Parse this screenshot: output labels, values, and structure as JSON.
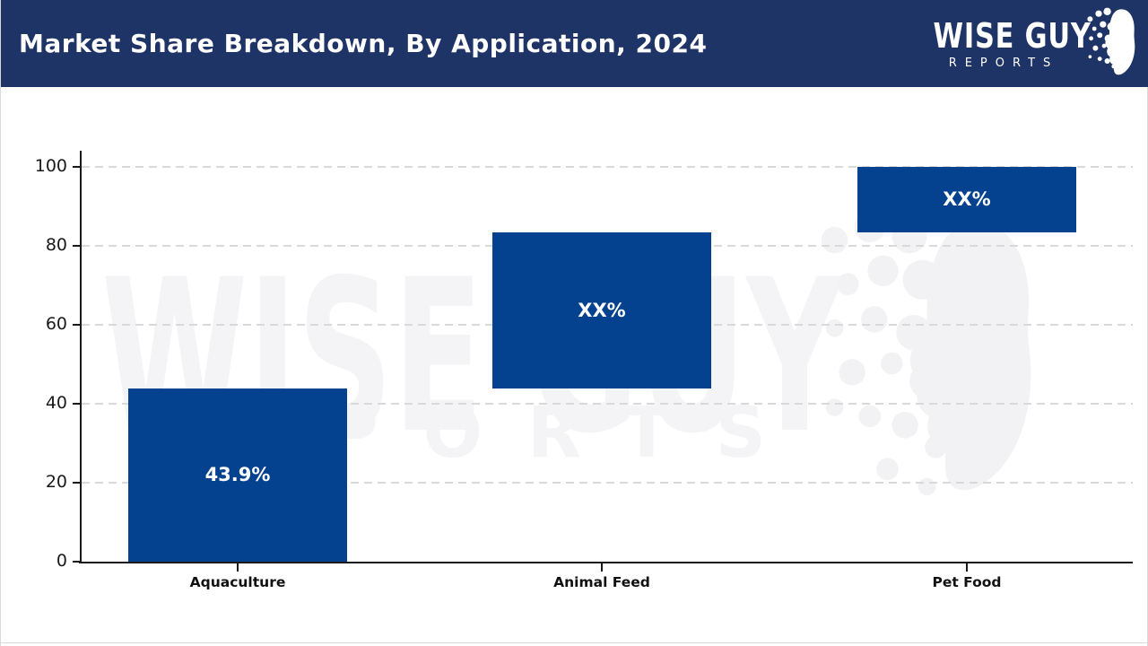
{
  "header": {
    "title": "Market Share Breakdown, By Application, 2024",
    "bg_color": "#1f3466",
    "logo": {
      "line1": "WISE GUY",
      "line2": "REPORTS"
    }
  },
  "watermark": {
    "line1": "WISE GUY",
    "line2": "REPORTS"
  },
  "chart_data": {
    "type": "bar",
    "subtype": "waterfall",
    "title": "Market Share Breakdown, By Application, 2024",
    "categories": [
      "Aquaculture",
      "Animal Feed",
      "Pet Food"
    ],
    "series": [
      {
        "name": "Market Share",
        "segments": [
          {
            "category": "Aquaculture",
            "start": 0,
            "end": 43.9,
            "label": "43.9%"
          },
          {
            "category": "Animal Feed",
            "start": 43.9,
            "end": 83.5,
            "label": "XX%"
          },
          {
            "category": "Pet Food",
            "start": 83.5,
            "end": 100,
            "label": "XX%"
          }
        ]
      }
    ],
    "xlabel": "",
    "ylabel": "",
    "ylim": [
      0,
      100
    ],
    "yticks": [
      0,
      20,
      40,
      60,
      80,
      100
    ],
    "grid": "horizontal-dashed",
    "legend": "none",
    "bar_color": "#04428f",
    "bar_label_color": "#ffffff",
    "axis_color": "#1a1a1a",
    "grid_color": "#d9d9d9"
  }
}
